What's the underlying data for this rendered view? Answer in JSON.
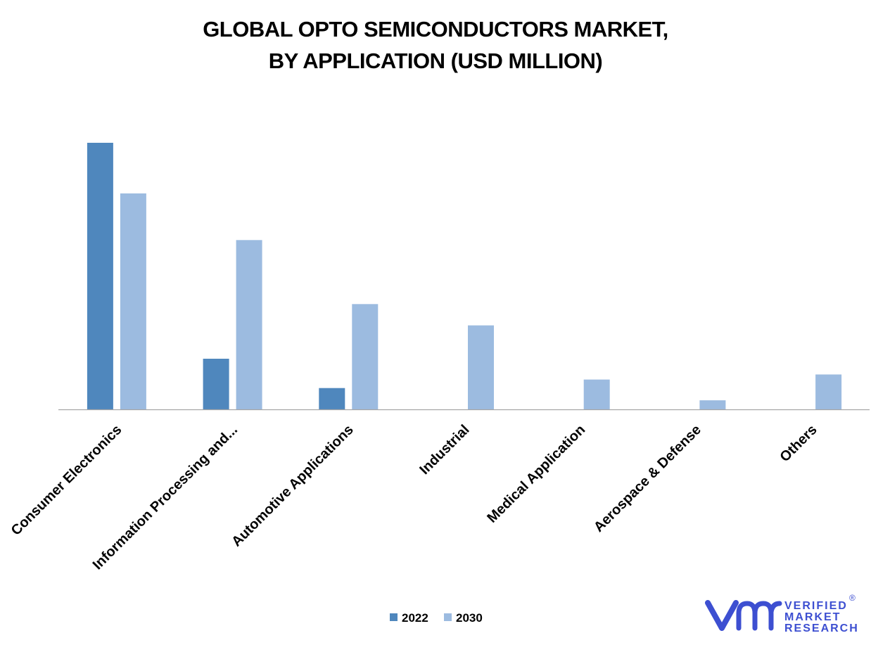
{
  "chart_data": {
    "type": "bar",
    "title": "GLOBAL OPTO SEMICONDUCTORS MARKET,",
    "subtitle": "BY APPLICATION (USD MILLION)",
    "categories": [
      "Consumer Electronics",
      "Information Processing and...",
      "Automotive Applications",
      "Industrial",
      "Medical Application",
      "Aerospace & Defense",
      "Others"
    ],
    "series": [
      {
        "name": "2022",
        "values": [
          100,
          19,
          8,
          0,
          0,
          0,
          0
        ]
      },
      {
        "name": "2030",
        "values": [
          81,
          63.5,
          39.5,
          31.5,
          11.2,
          3.4,
          13.1
        ]
      }
    ],
    "ylim": [
      0,
      100
    ],
    "grid": false,
    "legend_position": "bottom-center",
    "colors": {
      "2022": "#4f87bd",
      "2030": "#9cbbe0",
      "axis": "#a6a6a6",
      "logo": "#3d4fd1"
    }
  },
  "logo": {
    "icon": "vmr-logo-icon",
    "line1": "VERIFIED",
    "line2": "MARKET",
    "line3": "RESEARCH",
    "registered": "®"
  }
}
